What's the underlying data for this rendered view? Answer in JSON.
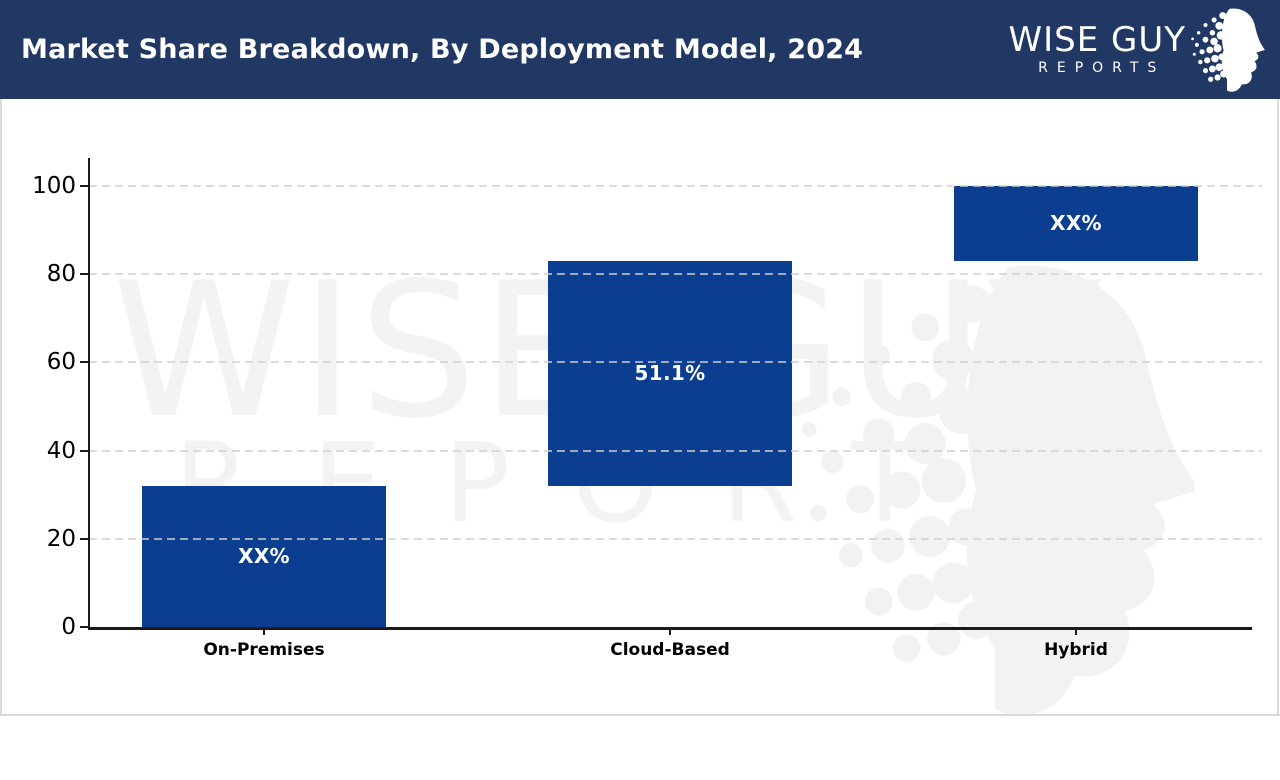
{
  "header": {
    "title": "Market Share Breakdown, By Deployment Model, 2024",
    "logo": {
      "wordmark": "WISE GUY",
      "subtitle": "REPORTS"
    }
  },
  "watermark": {
    "wordmark": "WISE GUY",
    "subtitle": "REPORTS"
  },
  "chart_data": {
    "type": "bar",
    "subtype": "floating-segment-waterfall",
    "title": "Market Share Breakdown, By Deployment Model, 2024",
    "categories": [
      "On-Premises",
      "Cloud-Based",
      "Hybrid"
    ],
    "series": [
      {
        "name": "Market share (%)",
        "segments": [
          {
            "category": "On-Premises",
            "start": 0,
            "end": 32,
            "label": "XX%"
          },
          {
            "category": "Cloud-Based",
            "start": 32,
            "end": 83.1,
            "label": "51.1%"
          },
          {
            "category": "Hybrid",
            "start": 83.1,
            "end": 100,
            "label": "XX%"
          }
        ]
      }
    ],
    "ylim": [
      0,
      100
    ],
    "yticks": [
      "0",
      "20",
      "40",
      "60",
      "80",
      "100"
    ],
    "xlabel": "",
    "ylabel": "",
    "grid": {
      "horizontal": true,
      "style": "dashed"
    },
    "legend": "none",
    "colors": {
      "bar": "#0b3d91",
      "bar_label": "#ffffff",
      "header_bg": "#213865",
      "grid_line": "#d4d4d4",
      "axis": "#1a1a1a",
      "watermark": "#f2f2f2"
    }
  }
}
